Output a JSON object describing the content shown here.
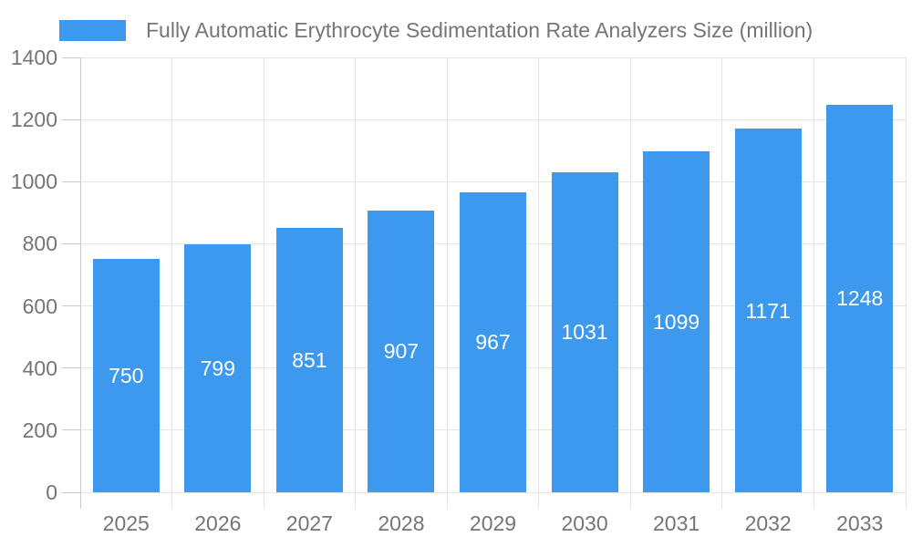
{
  "chart_data": {
    "type": "bar",
    "title": "Fully Automatic Erythrocyte Sedimentation Rate Analyzers Size (million)",
    "categories": [
      "2025",
      "2026",
      "2027",
      "2028",
      "2029",
      "2030",
      "2031",
      "2032",
      "2033"
    ],
    "values": [
      750,
      799,
      851,
      907,
      967,
      1031,
      1099,
      1171,
      1248
    ],
    "xlabel": "",
    "ylabel": "",
    "ylim": [
      0,
      1400
    ],
    "yticks": [
      0,
      200,
      400,
      600,
      800,
      1000,
      1200,
      1400
    ],
    "legend_position": "top",
    "grid": true,
    "colors": {
      "bar": "#3C99ED",
      "bar_value_label": "#ffffff",
      "axis_text": "#757575",
      "legend_text": "#757575",
      "gridline": "#e4e4e4",
      "axis_line": "#c9c9c9",
      "background": "#ffffff"
    }
  }
}
